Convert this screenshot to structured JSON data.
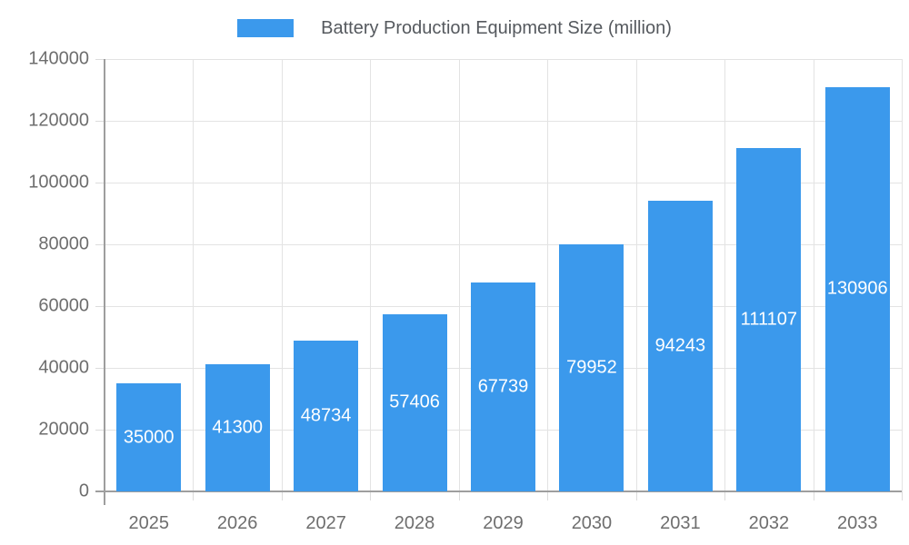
{
  "legend": {
    "label": "Battery Production Equipment Size (million)"
  },
  "chart_data": {
    "type": "bar",
    "title": "Battery Production Equipment Size (million)",
    "categories": [
      "2025",
      "2026",
      "2027",
      "2028",
      "2029",
      "2030",
      "2031",
      "2032",
      "2033"
    ],
    "series": [
      {
        "name": "Battery Production Equipment Size (million)",
        "values": [
          35000,
          41300,
          48734,
          57406,
          67739,
          79952,
          94243,
          111107,
          130906
        ]
      }
    ],
    "xlabel": "",
    "ylabel": "",
    "ylim": [
      0,
      140000
    ],
    "ytick_step": 20000,
    "yticks": [
      0,
      20000,
      40000,
      60000,
      80000,
      100000,
      120000,
      140000
    ],
    "grid": true,
    "legend_position": "top",
    "bar_value_labels": "white, centered inside bars",
    "colors": {
      "bar": "#3b99ec",
      "bar_label": "#ffffff",
      "gridline": "#e3e3e3",
      "axis_line": "#9e9e9e",
      "tick_label": "#6e6e6e",
      "legend_text": "#55595e",
      "background": "#ffffff"
    }
  }
}
